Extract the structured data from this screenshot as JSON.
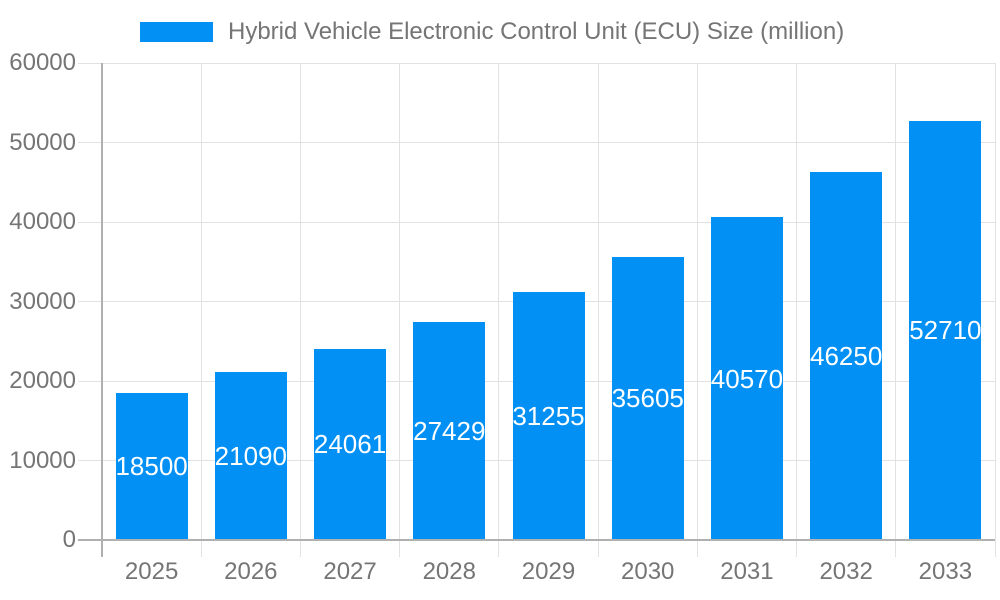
{
  "chart_data": {
    "type": "bar",
    "title": "Hybrid Vehicle Electronic Control Unit (ECU) Size (million)",
    "categories": [
      "2025",
      "2026",
      "2027",
      "2028",
      "2029",
      "2030",
      "2031",
      "2032",
      "2033"
    ],
    "values": [
      18500,
      21090,
      24061,
      27429,
      31255,
      35605,
      40570,
      46250,
      52710
    ],
    "value_labels": [
      "18500",
      "21090",
      "24061",
      "27429",
      "31255",
      "35605",
      "40570",
      "46250",
      "52710"
    ],
    "y_ticks": [
      "0",
      "10000",
      "20000",
      "30000",
      "40000",
      "50000",
      "60000"
    ],
    "ylim": [
      0,
      60000
    ],
    "xlabel": "",
    "ylabel": "",
    "grid": true,
    "legend_position": "top",
    "colors": {
      "bar": "#0290f5",
      "grid": "#e2e2e2",
      "axis": "#b0b0b0",
      "text": "#757575",
      "value_label": "#ffffff",
      "background": "#ffffff"
    }
  }
}
